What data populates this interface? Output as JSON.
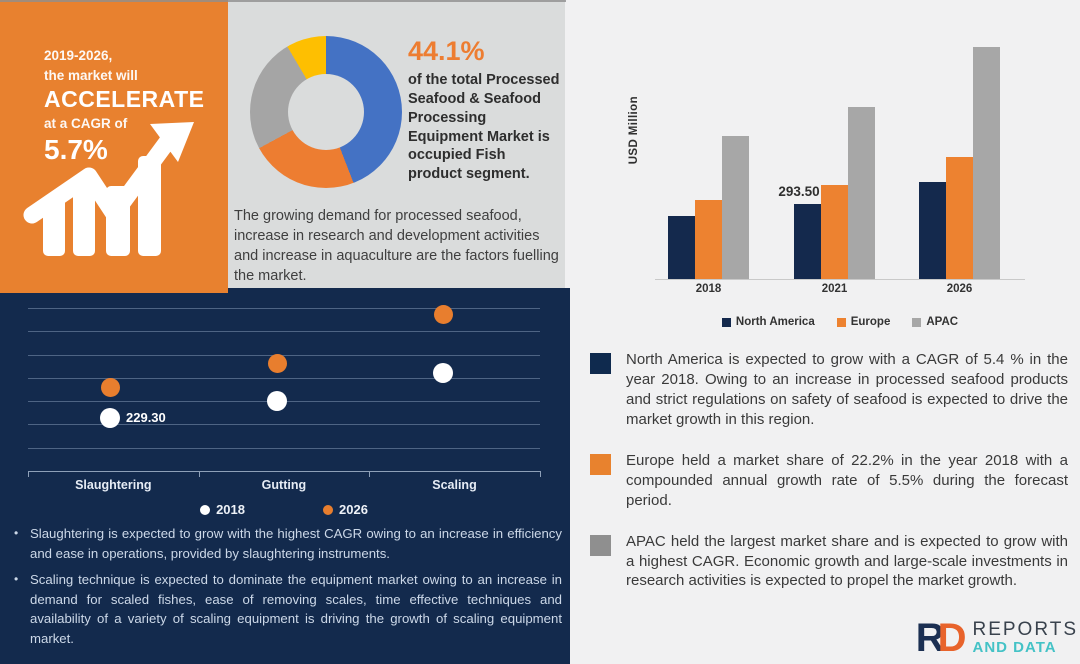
{
  "colors": {
    "navy": "#132a4d",
    "orange": "#e8812f",
    "panel_gray": "#dadcdc",
    "teal": "#44c2c6",
    "white": "#ffffff"
  },
  "promo": {
    "line1": "2019-2026,",
    "line2": "the market will",
    "line3": "ACCELERATE",
    "line4": "at a CAGR of",
    "line5": "5.7%"
  },
  "donut_section": {
    "headline_value": "44.1%",
    "headline_text": "of the total Processed Seafood & Seafood Processing Equipment Market is occupied Fish product segment.",
    "body": "The growing demand for processed seafood, increase in research and development activities and increase in aquaculture are the factors fuelling the market."
  },
  "chart_data": [
    {
      "type": "pie",
      "subtype": "donut",
      "slices": [
        {
          "label": "Fish product segment",
          "value": 44.1,
          "color": "#4472c4"
        },
        {
          "label": "",
          "value": 23.0,
          "color": "#ed7d31"
        },
        {
          "label": "",
          "value": 24.4,
          "color": "#a5a5a5"
        },
        {
          "label": "",
          "value": 8.5,
          "color": "#febf01"
        }
      ],
      "annotation": "44.1%"
    },
    {
      "type": "scatter",
      "subtype": "dot-plot",
      "categories": [
        "Slaughtering",
        "Gutting",
        "Scaling"
      ],
      "series": [
        {
          "name": "2018",
          "color": "#ffffff",
          "values": [
            229.3,
            300,
            420
          ]
        },
        {
          "name": "2026",
          "color": "#e87e2e",
          "values": [
            360,
            460,
            670
          ]
        }
      ],
      "ylim": [
        0,
        700
      ],
      "gridline_step": 100,
      "grid": "on",
      "legend_position": "bottom",
      "data_label": {
        "series": "2018",
        "category": "Slaughtering",
        "text": "229.30"
      }
    },
    {
      "type": "bar",
      "subtype": "grouped-vertical",
      "categories": [
        "2018",
        "2021",
        "2026"
      ],
      "series": [
        {
          "name": "North America",
          "color": "#14294d",
          "values": [
            246,
            293.5,
            382
          ]
        },
        {
          "name": "Europe",
          "color": "#ed8230",
          "values": [
            310,
            367,
            480
          ]
        },
        {
          "name": "APAC",
          "color": "#a7a7a7",
          "values": [
            560,
            675,
            909
          ]
        }
      ],
      "ylabel": "USD Million",
      "xlabel": "",
      "ylim": [
        0,
        1000
      ],
      "grid": "off",
      "legend_position": "bottom",
      "data_label": {
        "series": "North America",
        "category": "2021",
        "text": "293.50"
      }
    }
  ],
  "dot_bullets": [
    "Slaughtering is expected to grow with the highest CAGR owing to an increase in efficiency and ease in operations, provided by slaughtering instruments.",
    "Scaling technique is expected to dominate the equipment market  owing to an increase in demand for scaled fishes, ease of removing scales, time effective techniques  and availability of a variety of scaling equipment is driving the growth of scaling equipment market."
  ],
  "region_bullets": [
    {
      "color": "#0f2a4e",
      "text": "North America is expected to grow with a CAGR of 5.4 % in the year 2018. Owing to an increase in processed seafood products and strict regulations on safety of seafood is expected to drive the market growth in this region."
    },
    {
      "color": "#e8822e",
      "text": "Europe held a market share of 22.2% in the year 2018 with a compounded annual growth rate of 5.5% during the forecast period."
    },
    {
      "color": "#8f8f8f",
      "text": "APAC held the largest market share and is expected to grow with a highest CAGR. Economic growth and large-scale investments in research activities is expected to propel the market growth."
    }
  ],
  "logo": {
    "monogram_r": "R",
    "monogram_d": "D",
    "line1": "REPORTS",
    "line2": "AND DATA"
  }
}
